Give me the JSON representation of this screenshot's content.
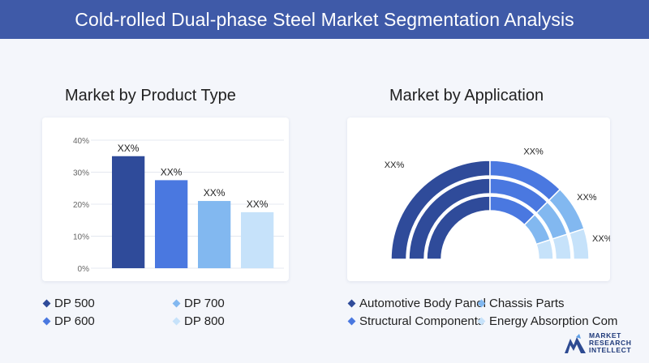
{
  "header": {
    "title": "Cold-rolled Dual-phase Steel Market Segmentation Analysis"
  },
  "colors": {
    "header_bg": "#3f5aa8",
    "dp500": "#2f4b9a",
    "dp600": "#4a78e0",
    "dp700": "#82b8f0",
    "dp800": "#c6e2fa"
  },
  "chart_data": [
    {
      "type": "bar",
      "title": "Market by Product Type",
      "categories": [
        "DP 500",
        "DP 600",
        "DP 700",
        "DP 800"
      ],
      "values": [
        35,
        27.5,
        21,
        17.5
      ],
      "data_labels": [
        "XX%",
        "XX%",
        "XX%",
        "XX%"
      ],
      "yticks": [
        "0%",
        "10%",
        "20%",
        "30%",
        "40%"
      ],
      "ylim": [
        0,
        40
      ],
      "grid": true,
      "legend": "bottom"
    },
    {
      "type": "pie",
      "title": "Market by Application",
      "categories": [
        "Automotive Body Panel",
        "Chassis Parts",
        "Structural Components",
        "Energy Absorption Com"
      ],
      "values": [
        50,
        25,
        15,
        10
      ],
      "data_labels": [
        "XX%",
        "XX%",
        "XX%",
        "XX%"
      ],
      "legend": "bottom"
    }
  ],
  "logo": {
    "line1": "MARKET",
    "line2": "RESEARCH",
    "line3": "INTELLECT"
  }
}
